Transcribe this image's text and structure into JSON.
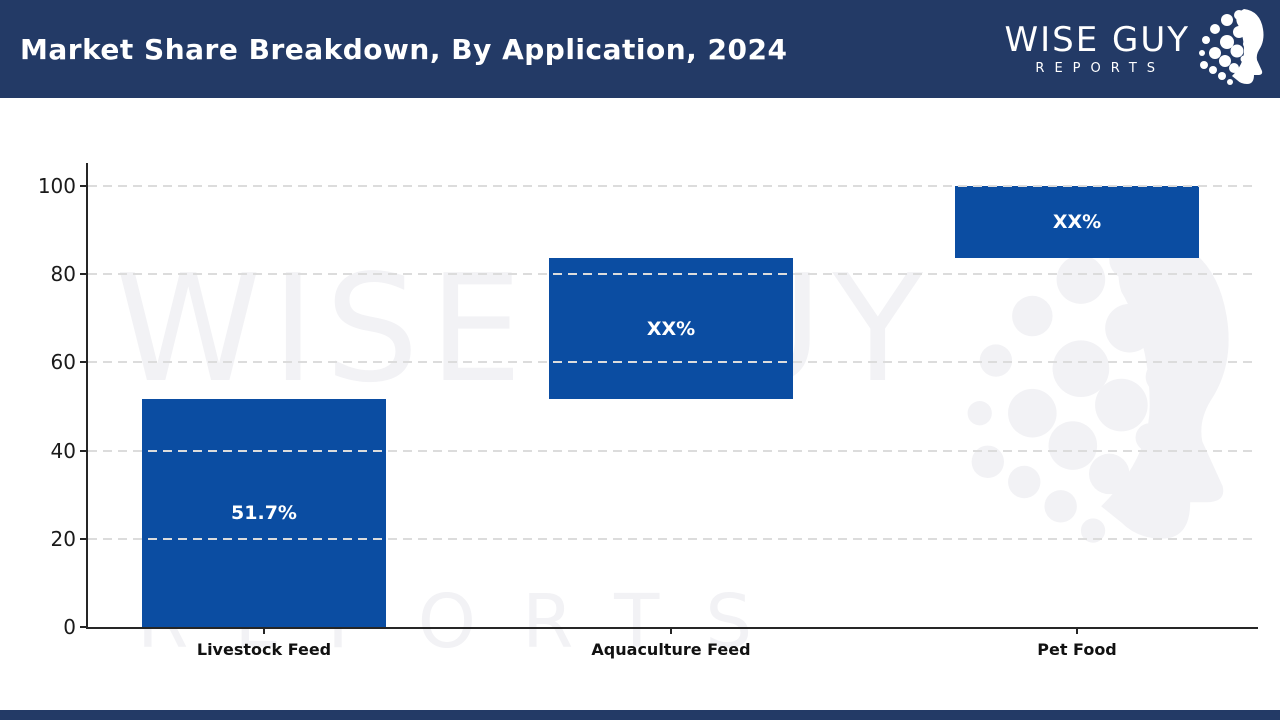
{
  "header": {
    "title": "Market Share Breakdown, By Application, 2024",
    "bg_color": "#233A66",
    "logo": {
      "line1": "WISE GUY",
      "line2": "REPORTS"
    }
  },
  "footer": {
    "bg_color": "#233A66"
  },
  "watermark": {
    "line1": "WISE GUY",
    "line2": "REPORTS"
  },
  "chart_data": {
    "type": "bar",
    "variant": "floating-waterfall-segments",
    "title": "Market Share Breakdown, By Application, 2024",
    "categories": [
      "Livestock Feed",
      "Aquaculture Feed",
      "Pet Food"
    ],
    "segments": [
      {
        "category": "Livestock Feed",
        "start": 0,
        "end": 51.7,
        "label": "51.7%"
      },
      {
        "category": "Aquaculture Feed",
        "start": 51.7,
        "end": 83.6,
        "label": "XX%"
      },
      {
        "category": "Pet Food",
        "start": 83.6,
        "end": 100,
        "label": "XX%"
      }
    ],
    "yticks": [
      0,
      20,
      40,
      60,
      80,
      100
    ],
    "ylim": [
      0,
      105
    ],
    "xlabel": "",
    "ylabel": "",
    "bar_color": "#0B4DA2",
    "bar_label_color": "#ffffff",
    "grid": "dashed-horizontal",
    "grid_color": "#dcdcdc",
    "axis_color": "#262626",
    "legend": "none"
  }
}
